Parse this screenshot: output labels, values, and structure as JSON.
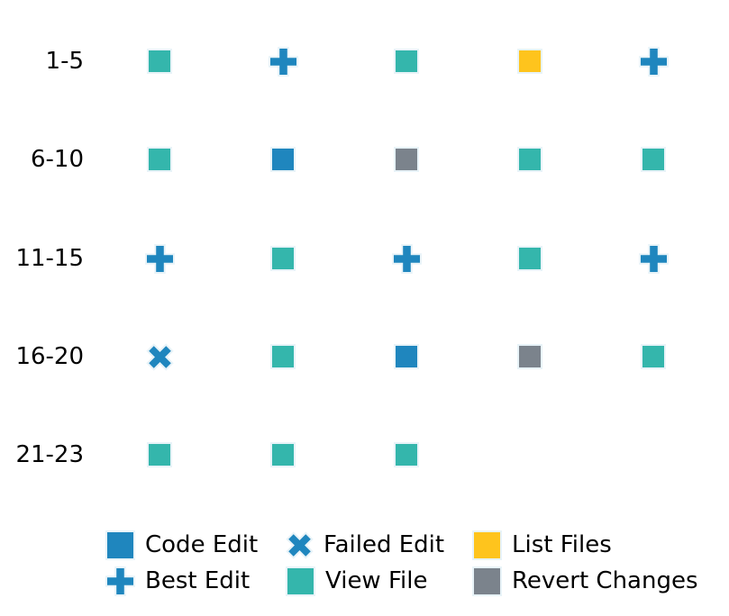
{
  "chart_data": {
    "type": "scatter",
    "title": "",
    "description": "Grid of per-step action markers grouped by step ranges; legend at bottom",
    "row_labels": [
      "1-5",
      "6-10",
      "11-15",
      "16-20",
      "21-23"
    ],
    "grid": [
      [
        "view_file",
        "best_edit",
        "view_file",
        "list_files",
        "best_edit"
      ],
      [
        "view_file",
        "code_edit",
        "revert_changes",
        "view_file",
        "view_file"
      ],
      [
        "best_edit",
        "view_file",
        "best_edit",
        "view_file",
        "best_edit"
      ],
      [
        "failed_edit",
        "view_file",
        "code_edit",
        "revert_changes",
        "view_file"
      ],
      [
        "view_file",
        "view_file",
        "view_file",
        null,
        null
      ]
    ],
    "legend": [
      {
        "key": "code_edit",
        "label": "Code Edit",
        "shape": "square",
        "color": "#1F86BE"
      },
      {
        "key": "failed_edit",
        "label": "Failed Edit",
        "shape": "x",
        "color": "#1F86BE"
      },
      {
        "key": "list_files",
        "label": "List Files",
        "shape": "square",
        "color": "#FEC41D"
      },
      {
        "key": "best_edit",
        "label": "Best Edit",
        "shape": "plus",
        "color": "#1F86BE"
      },
      {
        "key": "view_file",
        "label": "View File",
        "shape": "square",
        "color": "#34B6AC"
      },
      {
        "key": "revert_changes",
        "label": "Revert Changes",
        "shape": "square",
        "color": "#7B838C"
      }
    ],
    "legend_position": "bottom",
    "colors": {
      "blue": "#1F86BE",
      "teal": "#34B6AC",
      "yellow": "#FEC41D",
      "gray": "#7B838C",
      "marker_outline": "#E8F3F8",
      "background": "#FFFFFF",
      "text": "#000000"
    }
  }
}
